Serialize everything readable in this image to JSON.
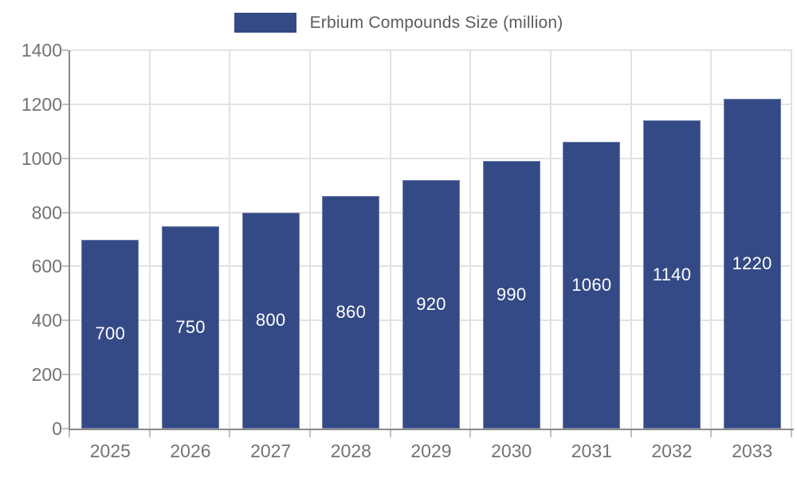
{
  "legend": {
    "label": "Erbium Compounds Size (million)"
  },
  "chart_data": {
    "type": "bar",
    "title": "",
    "series_name": "Erbium Compounds Size (million)",
    "categories": [
      "2025",
      "2026",
      "2027",
      "2028",
      "2029",
      "2030",
      "2031",
      "2032",
      "2033"
    ],
    "values": [
      700,
      750,
      800,
      860,
      920,
      990,
      1060,
      1140,
      1220
    ],
    "xlabel": "",
    "ylabel": "",
    "ylim": [
      0,
      1400
    ],
    "yticks": [
      0,
      200,
      400,
      600,
      800,
      1000,
      1200,
      1400
    ],
    "grid": true,
    "legend_position": "top-center",
    "value_labels": "inside-center"
  },
  "colors": {
    "bar": "#344a86",
    "legend_text": "#5c5c5c",
    "axis_line": "#8a8a8a",
    "tick": "#bfbfbf",
    "gridline": "#e2e2e5",
    "axis_label": "#737373",
    "value_label": "#ffffff",
    "background": "#ffffff"
  }
}
